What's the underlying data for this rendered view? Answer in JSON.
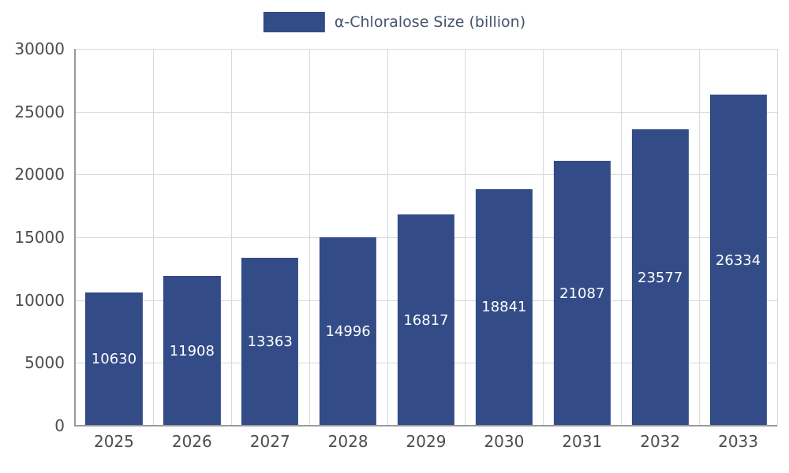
{
  "legend": {
    "label": "α-Chloralose Size (billion)"
  },
  "colors": {
    "bar": "#334C87",
    "bar_value_text": "#ffffff",
    "axis_line": "#9a9a9a",
    "gridline": "#d9d9d9",
    "tick_text": "#4d4d4d",
    "legend_text": "#44546a"
  },
  "chart_data": {
    "type": "bar",
    "title": "α-Chloralose Size (billion)",
    "categories": [
      "2025",
      "2026",
      "2027",
      "2028",
      "2029",
      "2030",
      "2031",
      "2032",
      "2033"
    ],
    "values": [
      10630,
      11908,
      13363,
      14996,
      16817,
      18841,
      21087,
      23577,
      26334
    ],
    "xlabel": "",
    "ylabel": "",
    "ylim": [
      0,
      30000
    ],
    "yticks": [
      0,
      5000,
      10000,
      15000,
      20000,
      25000,
      30000
    ],
    "grid": true,
    "legend_position": "top-center",
    "bar_color": "#334C87",
    "value_labels": "inside-center-white"
  }
}
